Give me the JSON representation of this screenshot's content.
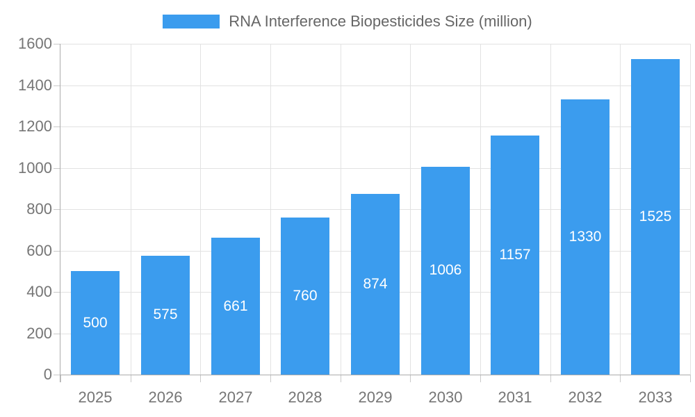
{
  "chart_data": {
    "type": "bar",
    "title": "RNA Interference Biopesticides Size (million)",
    "legend": {
      "label": "RNA Interference Biopesticides Size (million)",
      "position": "top-center"
    },
    "categories": [
      "2025",
      "2026",
      "2027",
      "2028",
      "2029",
      "2030",
      "2031",
      "2032",
      "2033"
    ],
    "series": [
      {
        "name": "RNA Interference Biopesticides Size (million)",
        "values": [
          500,
          575,
          661,
          760,
          874,
          1006,
          1157,
          1330,
          1525
        ]
      }
    ],
    "xlabel": "",
    "ylabel": "",
    "ylim": [
      0,
      1600
    ],
    "ytick_step": 200,
    "yticks": [
      0,
      200,
      400,
      600,
      800,
      1000,
      1200,
      1400,
      1600
    ],
    "grid": true,
    "bar_label_position": "inside-center",
    "colors": {
      "bar": "#3B9CEE",
      "bar_label_text": "#FFFFFF",
      "axis_line": "#ABABAB",
      "grid_line": "#E2E2E2",
      "tick": "#C9C9C9",
      "axis_text": "#757575",
      "legend_text": "#666666",
      "background": "#FFFFFF"
    }
  }
}
